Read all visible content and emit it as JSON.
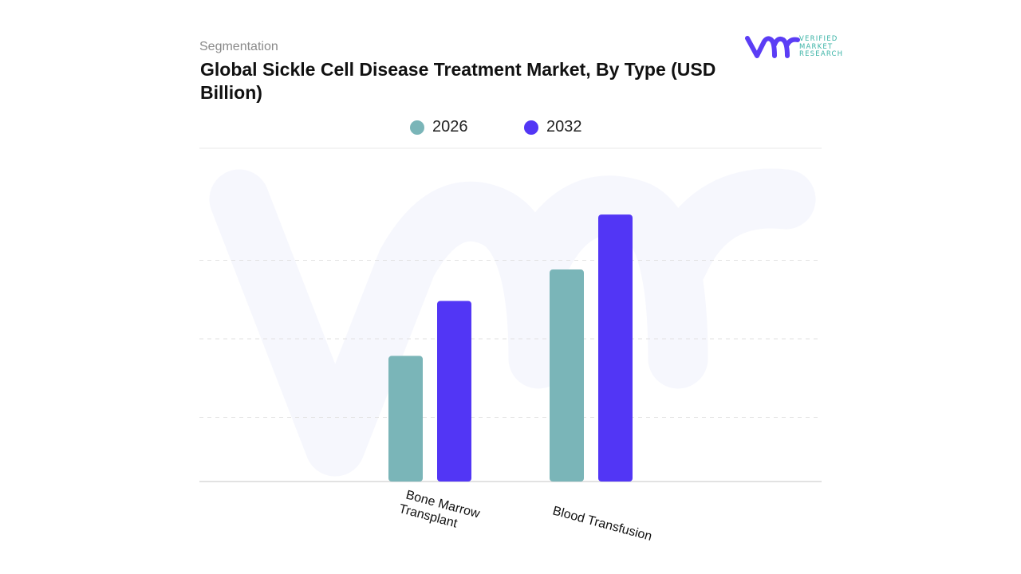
{
  "header": {
    "subtitle": "Segmentation",
    "title": "Global Sickle Cell Disease Treatment Market, By Type (USD Billion)"
  },
  "logo": {
    "mark_icon": "vmr-logo-icon",
    "line1": "VERIFIED",
    "line2": "MARKET",
    "line3": "RESEARCH",
    "brand_color": "#5b3df5",
    "accent_color": "#3ab3a6"
  },
  "chart_data": {
    "type": "bar",
    "title": "Global Sickle Cell Disease Treatment Market, By Type (USD Billion)",
    "categories": [
      "Bone Marrow Transplant",
      "Blood Transfusion"
    ],
    "series": [
      {
        "name": "2026",
        "color": "#7ab5b8",
        "values": [
          1.6,
          2.7
        ]
      },
      {
        "name": "2032",
        "color": "#5236f5",
        "values": [
          2.3,
          3.4
        ]
      }
    ],
    "ylim": [
      0,
      4
    ],
    "grid": true,
    "legend": "top-center",
    "xlabel": "",
    "ylabel": ""
  }
}
